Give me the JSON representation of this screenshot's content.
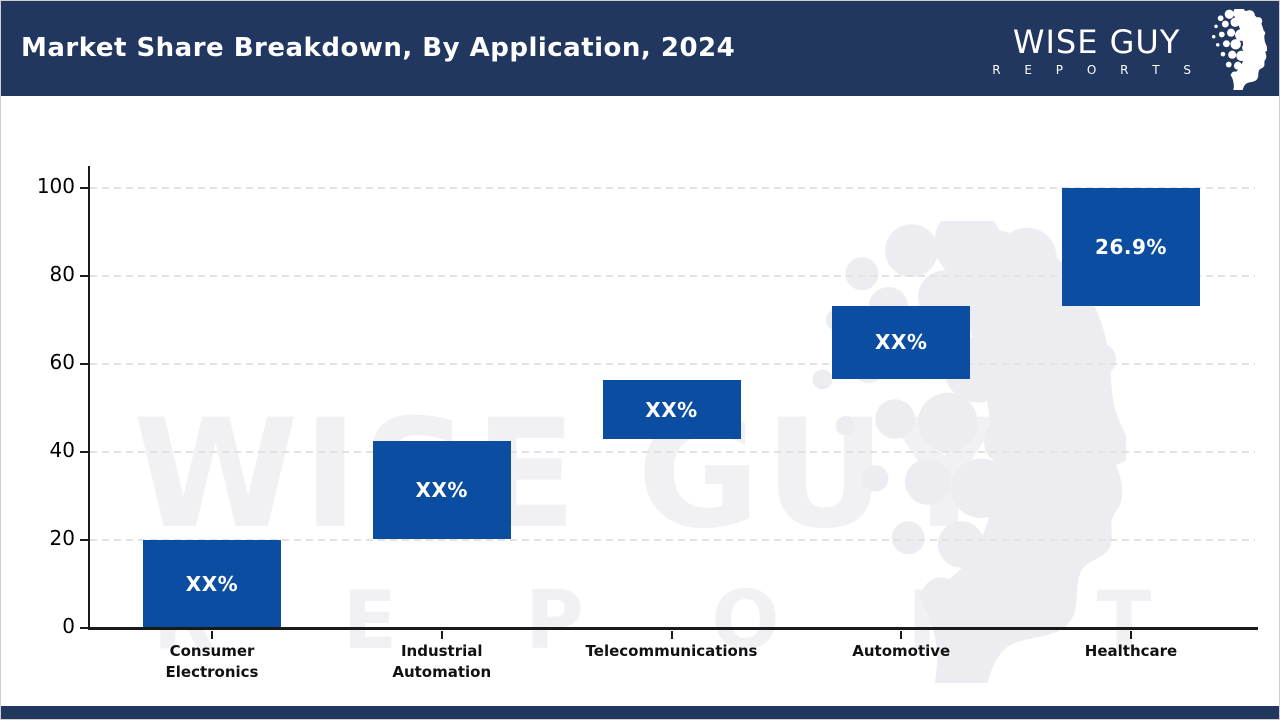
{
  "header": {
    "title": "Market Share Breakdown, By Application, 2024",
    "logo": {
      "line1": "WISE GUY",
      "line2": "R E P O R T S"
    }
  },
  "watermark": {
    "line1": "WISE GUY",
    "line2": "R E P O R T S"
  },
  "colors": {
    "header_navy": "#21375f",
    "bar_blue": "#0b4da1",
    "bar_label_white": "#ffffff",
    "watermark_gray": "#f1f1f4",
    "gridline_gray": "#e2e2e2",
    "axis_black": "#1a1a1a"
  },
  "chart_data": {
    "type": "bar",
    "subtype": "waterfall-floating-segments",
    "title": "Market Share Breakdown, By Application, 2024",
    "xlabel": "",
    "ylabel": "",
    "ylim": [
      0,
      105
    ],
    "y_ticks": [
      0,
      20,
      40,
      60,
      80,
      100
    ],
    "grid": "horizontal-dashed",
    "legend": "none",
    "categories": [
      "Consumer\nElectronics",
      "Industrial\nAutomation",
      "Telecommunications",
      "Automotive",
      "Healthcare"
    ],
    "segments": [
      {
        "category": "Consumer\nElectronics",
        "start": 0,
        "end": 20,
        "share": 20.0,
        "label": "XX%"
      },
      {
        "category": "Industrial\nAutomation",
        "start": 20.3,
        "end": 42.6,
        "share": 22.3,
        "label": "XX%"
      },
      {
        "category": "Telecommunications",
        "start": 42.9,
        "end": 56.4,
        "share": 13.5,
        "label": "XX%"
      },
      {
        "category": "Automotive",
        "start": 56.6,
        "end": 73.2,
        "share": 16.6,
        "label": "XX%"
      },
      {
        "category": "Healthcare",
        "start": 73.2,
        "end": 100,
        "share": 26.9,
        "label": "26.9%"
      }
    ]
  }
}
